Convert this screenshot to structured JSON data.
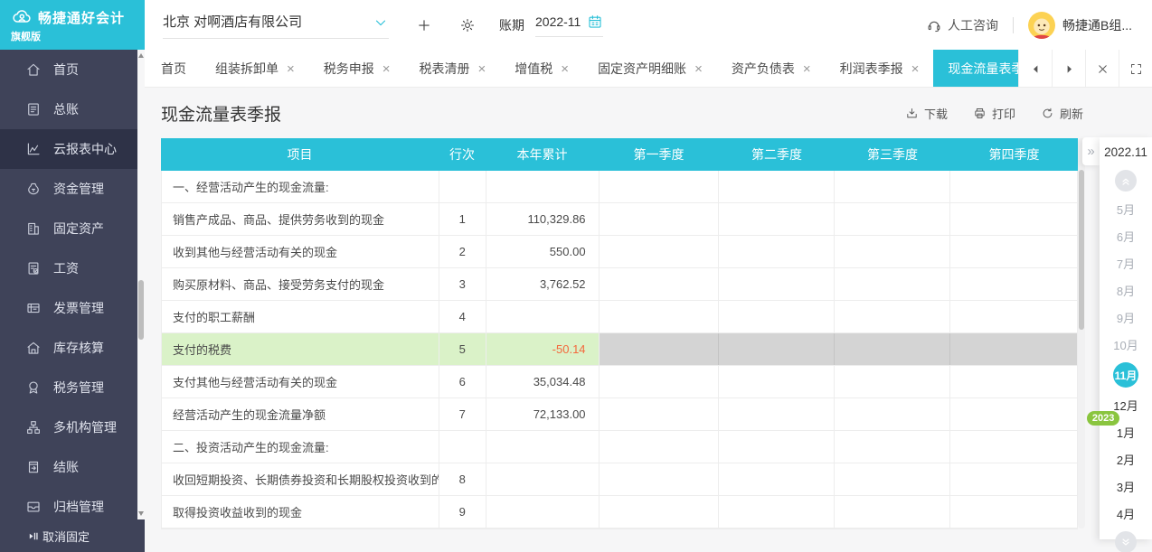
{
  "topbar": {
    "logo_title": "畅捷通好会计",
    "logo_subtitle": "旗舰版",
    "logo_icon": "cloud-logo-icon",
    "company": "北京 对啊酒店有限公司",
    "company_dropdown_icon": "chevron-down-icon",
    "add_icon": "plus-icon",
    "settings_icon": "gear-icon",
    "period_label": "账期",
    "period_value": "2022-11",
    "period_icon": "calendar-icon",
    "support_icon": "headset-icon",
    "support_label": "人工咨询",
    "avatar_icon": "monkey-avatar-icon",
    "user_name": "畅捷通B组..."
  },
  "sidebar": {
    "items": [
      {
        "label": "首页",
        "icon": "home-icon",
        "active": false
      },
      {
        "label": "总账",
        "icon": "ledger-icon",
        "active": false
      },
      {
        "label": "云报表中心",
        "icon": "report-chart-icon",
        "active": true
      },
      {
        "label": "资金管理",
        "icon": "money-bag-icon",
        "active": false
      },
      {
        "label": "固定资产",
        "icon": "building-icon",
        "active": false
      },
      {
        "label": "工资",
        "icon": "salary-doc-icon",
        "active": false
      },
      {
        "label": "发票管理",
        "icon": "invoice-icon",
        "active": false
      },
      {
        "label": "库存核算",
        "icon": "inventory-icon",
        "active": false
      },
      {
        "label": "税务管理",
        "icon": "tax-seal-icon",
        "active": false
      },
      {
        "label": "多机构管理",
        "icon": "org-chart-icon",
        "active": false
      },
      {
        "label": "结账",
        "icon": "closing-book-icon",
        "active": false
      },
      {
        "label": "归档管理",
        "icon": "archive-box-icon",
        "active": false
      }
    ],
    "unpin_icon": "unpin-icon",
    "unpin_label": "取消固定"
  },
  "tabbar": {
    "tabs": [
      {
        "label": "首页",
        "closable": false,
        "active": false
      },
      {
        "label": "组装拆卸单",
        "closable": true,
        "active": false
      },
      {
        "label": "税务申报",
        "closable": true,
        "active": false
      },
      {
        "label": "税表清册",
        "closable": true,
        "active": false
      },
      {
        "label": "增值税",
        "closable": true,
        "active": false
      },
      {
        "label": "固定资产明细账",
        "closable": true,
        "active": false
      },
      {
        "label": "资产负债表",
        "closable": true,
        "active": false
      },
      {
        "label": "利润表季报",
        "closable": true,
        "active": false
      },
      {
        "label": "现金流量表季报",
        "closable": true,
        "active": true
      }
    ],
    "controls": [
      {
        "icon": "prev-tab-icon"
      },
      {
        "icon": "next-tab-icon"
      },
      {
        "icon": "close-tab-icon"
      },
      {
        "icon": "fullscreen-icon"
      }
    ]
  },
  "page": {
    "title": "现金流量表季报",
    "actions": [
      {
        "label": "下载",
        "icon": "download-icon"
      },
      {
        "label": "打印",
        "icon": "print-icon"
      },
      {
        "label": "刷新",
        "icon": "refresh-icon"
      }
    ]
  },
  "report_table": {
    "columns": [
      "项目",
      "行次",
      "本年累计",
      "第一季度",
      "第二季度",
      "第三季度",
      "第四季度"
    ],
    "rows": [
      {
        "item": "一、经营活动产生的现金流量:",
        "line": "",
        "ytd": "",
        "quarters": [
          "",
          "",
          "",
          ""
        ],
        "section": true,
        "highlight": false,
        "negative": false
      },
      {
        "item": "销售产成品、商品、提供劳务收到的现金",
        "line": "1",
        "ytd": "110,329.86",
        "quarters": [
          "",
          "",
          "",
          ""
        ],
        "section": false,
        "highlight": false,
        "negative": false
      },
      {
        "item": "收到其他与经营活动有关的现金",
        "line": "2",
        "ytd": "550.00",
        "quarters": [
          "",
          "",
          "",
          ""
        ],
        "section": false,
        "highlight": false,
        "negative": false
      },
      {
        "item": "购买原材料、商品、接受劳务支付的现金",
        "line": "3",
        "ytd": "3,762.52",
        "quarters": [
          "",
          "",
          "",
          ""
        ],
        "section": false,
        "highlight": false,
        "negative": false
      },
      {
        "item": "支付的职工薪酬",
        "line": "4",
        "ytd": "",
        "quarters": [
          "",
          "",
          "",
          ""
        ],
        "section": false,
        "highlight": false,
        "negative": false
      },
      {
        "item": "支付的税费",
        "line": "5",
        "ytd": "-50.14",
        "quarters": [
          "",
          "",
          "",
          ""
        ],
        "section": false,
        "highlight": true,
        "negative": true
      },
      {
        "item": "支付其他与经营活动有关的现金",
        "line": "6",
        "ytd": "35,034.48",
        "quarters": [
          "",
          "",
          "",
          ""
        ],
        "section": false,
        "highlight": false,
        "negative": false
      },
      {
        "item": "经营活动产生的现金流量净额",
        "line": "7",
        "ytd": "72,133.00",
        "quarters": [
          "",
          "",
          "",
          ""
        ],
        "section": false,
        "highlight": false,
        "negative": false
      },
      {
        "item": "二、投资活动产生的现金流量:",
        "line": "",
        "ytd": "",
        "quarters": [
          "",
          "",
          "",
          ""
        ],
        "section": true,
        "highlight": false,
        "negative": false
      },
      {
        "item": "收回短期投资、长期债券投资和长期股权投资收到的...",
        "line": "8",
        "ytd": "",
        "quarters": [
          "",
          "",
          "",
          ""
        ],
        "section": false,
        "highlight": false,
        "negative": false
      },
      {
        "item": "取得投资收益收到的现金",
        "line": "9",
        "ytd": "",
        "quarters": [
          "",
          "",
          "",
          ""
        ],
        "section": false,
        "highlight": false,
        "negative": false
      }
    ]
  },
  "month_panel": {
    "collapse_icon": "double-angle-right-icon",
    "current_period": "2022.11",
    "scroll_up_icon": "chevrons-up-icon",
    "scroll_down_icon": "chevrons-down-icon",
    "months": [
      {
        "label": "5月",
        "state": "muted"
      },
      {
        "label": "6月",
        "state": "muted"
      },
      {
        "label": "7月",
        "state": "muted"
      },
      {
        "label": "8月",
        "state": "muted"
      },
      {
        "label": "9月",
        "state": "muted"
      },
      {
        "label": "10月",
        "state": "muted"
      },
      {
        "label": "11月",
        "state": "active"
      },
      {
        "label": "12月",
        "state": "normal"
      },
      {
        "label": "1月",
        "state": "normal",
        "year_badge": "2023"
      },
      {
        "label": "2月",
        "state": "normal"
      },
      {
        "label": "3月",
        "state": "normal"
      },
      {
        "label": "4月",
        "state": "normal"
      }
    ]
  },
  "colors": {
    "accent": "#2ac0d8",
    "sidebar_bg": "#3f4359",
    "sidebar_active_bg": "#2e3247",
    "table_header_bg": "#2ac0d8",
    "row_highlight_green": "#daf2c8",
    "quarter_disabled_gray": "#d4d4d4",
    "negative_value": "#f4683c",
    "year_badge_green": "#8ac53f"
  }
}
